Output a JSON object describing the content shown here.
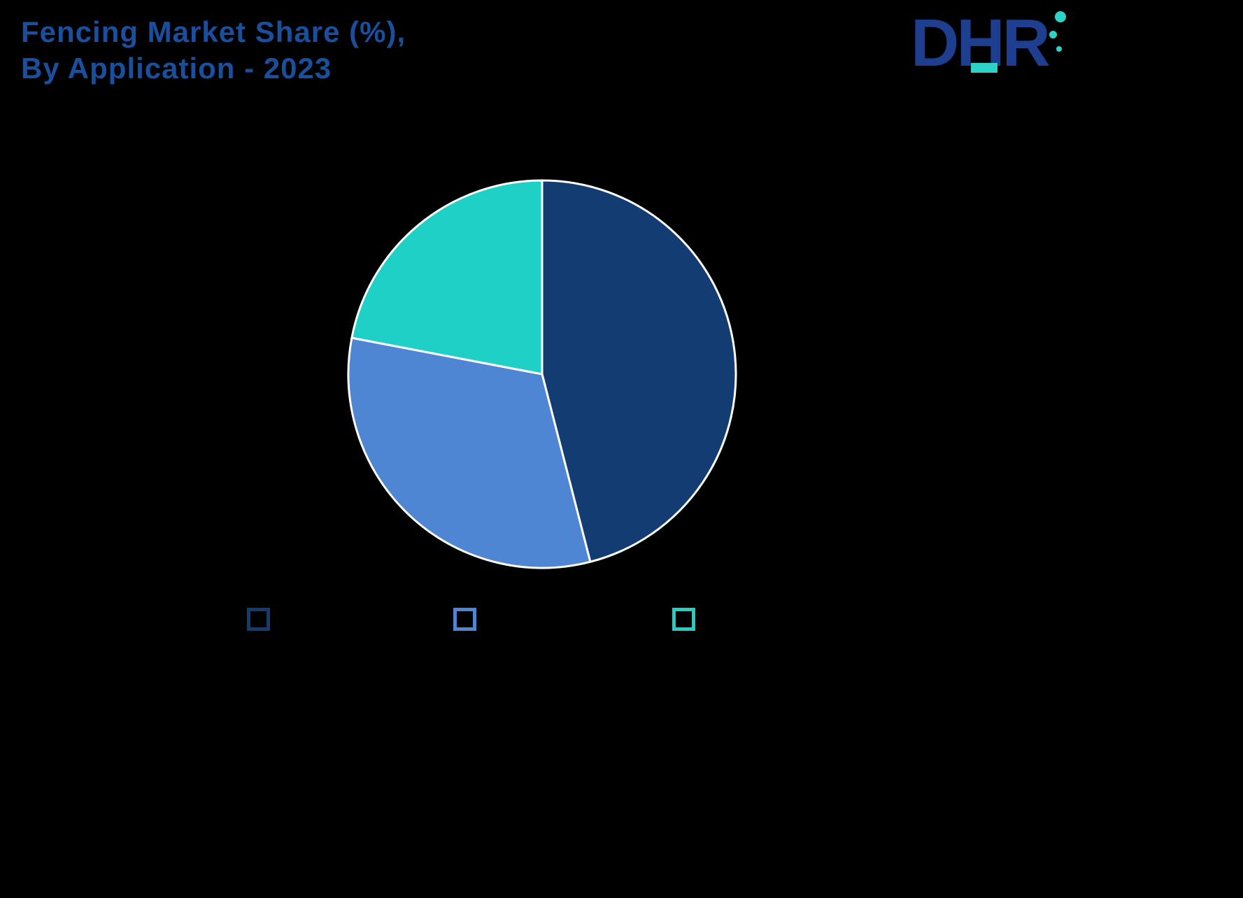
{
  "header": {
    "title_line1": "Fencing Market Share (%),",
    "title_line2": "By Application - 2023",
    "title_color": "#1a4f9e"
  },
  "logo": {
    "text": "DHR",
    "navy": "#1e3f8f",
    "teal": "#2ed3c8"
  },
  "chart_data": {
    "type": "pie",
    "title": "Fencing Market Share (%), By Application - 2023",
    "values": [
      46,
      32,
      22
    ],
    "labels": [
      "",
      "",
      ""
    ],
    "colors": [
      "#123c72",
      "#4e86d4",
      "#1fd0c6"
    ],
    "start_angle_deg": 0,
    "direction": "clockwise",
    "slice_stroke": "#ffffff",
    "slice_stroke_width": 3,
    "legend_position": "bottom",
    "background": "#000000"
  }
}
